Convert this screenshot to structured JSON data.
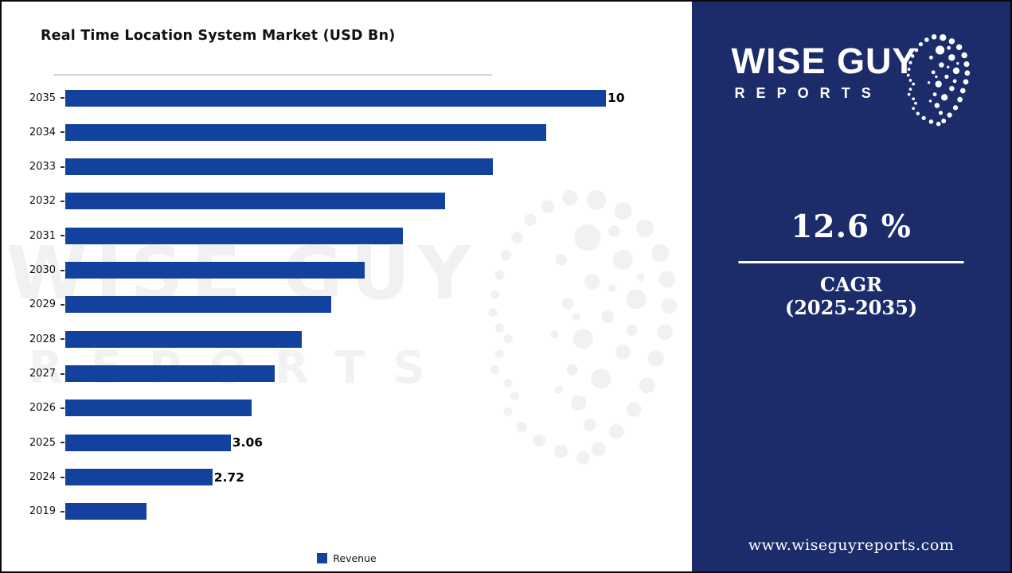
{
  "chart_data": {
    "type": "bar",
    "orientation": "horizontal",
    "title": "Real Time Location System Market (USD Bn)",
    "legend": [
      "Revenue"
    ],
    "xlim": [
      0,
      10.7
    ],
    "grid": false,
    "bar_color": "#12419e",
    "bars": [
      {
        "category": "2035",
        "value": 10.0,
        "label": "10"
      },
      {
        "category": "2034",
        "value": 8.9,
        "label": ""
      },
      {
        "category": "2033",
        "value": 7.91,
        "label": ""
      },
      {
        "category": "2032",
        "value": 7.02,
        "label": ""
      },
      {
        "category": "2031",
        "value": 6.24,
        "label": ""
      },
      {
        "category": "2030",
        "value": 5.54,
        "label": ""
      },
      {
        "category": "2029",
        "value": 4.92,
        "label": ""
      },
      {
        "category": "2028",
        "value": 4.37,
        "label": ""
      },
      {
        "category": "2027",
        "value": 3.88,
        "label": ""
      },
      {
        "category": "2026",
        "value": 3.45,
        "label": ""
      },
      {
        "category": "2025",
        "value": 3.06,
        "label": "3.06"
      },
      {
        "category": "2024",
        "value": 2.72,
        "label": "2.72"
      },
      {
        "category": "2019",
        "value": 1.5,
        "label": ""
      }
    ]
  },
  "watermark": {
    "line1": "WISE GUY",
    "line2": "REPORTS"
  },
  "panel": {
    "background": "#1c2c6b",
    "logo_line1": "WISE GUY",
    "logo_line2": "REPORTS",
    "cagr_value": "12.6 %",
    "cagr_line1": "CAGR",
    "cagr_line2": "(2025-2035)",
    "website": "www.wiseguyreports.com"
  }
}
